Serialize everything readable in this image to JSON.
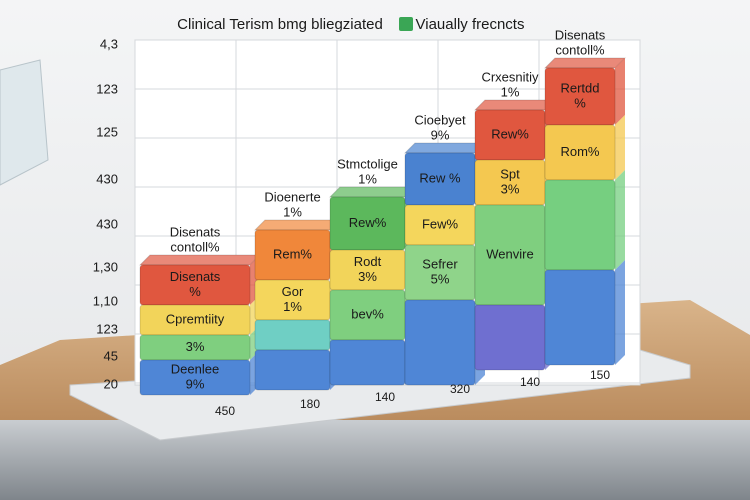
{
  "title": {
    "left": "Clinical Terism bmg bliegziated",
    "right": "Viaually frecncts"
  },
  "y_axis_labels": [
    "4,3",
    "123",
    "125",
    "430",
    "430",
    "1,30",
    "1,10",
    "123",
    "45",
    "20"
  ],
  "x_axis_labels": [
    "450",
    "180",
    "140",
    "320",
    "140",
    "150"
  ],
  "columns": [
    {
      "label": [
        "Disenats",
        "contoll%"
      ],
      "segments": [
        [
          "Disenats",
          "%"
        ],
        [
          "Cpremtiity"
        ],
        [
          "3%"
        ],
        [
          "Deenlee",
          "9%"
        ]
      ]
    },
    {
      "label": [
        "Dioenerte",
        "1%"
      ],
      "segments": [
        [
          "Rem%"
        ],
        [
          "Gor",
          "1%"
        ],
        [],
        []
      ]
    },
    {
      "label": [
        "Stmctolige",
        "1%"
      ],
      "segments": [
        [
          "Rew%"
        ],
        [
          "Rodt",
          "3%"
        ],
        [
          "bev%"
        ],
        []
      ]
    },
    {
      "label": [
        "Cioebyet",
        "9%"
      ],
      "segments": [
        [
          "Rew %"
        ],
        [
          "Few%"
        ],
        [
          "Sefrer",
          "5%"
        ],
        []
      ]
    },
    {
      "label": [
        "Crxesnitiy",
        "1%"
      ],
      "segments": [
        [
          "Rew%"
        ],
        [
          "Spt",
          "3%"
        ],
        [
          "Wenvire"
        ],
        []
      ]
    },
    {
      "label": [
        "Disenats",
        "contoll%"
      ],
      "segments": [
        [
          "Rertdd",
          "%"
        ],
        [
          "Rom%"
        ],
        [],
        []
      ]
    }
  ]
}
